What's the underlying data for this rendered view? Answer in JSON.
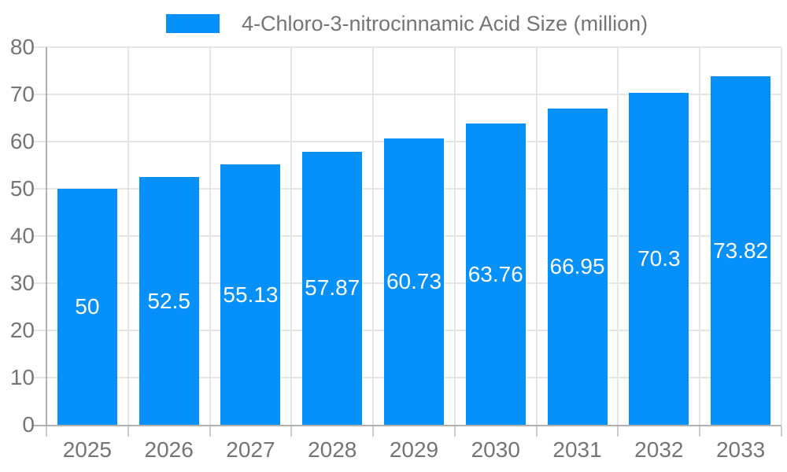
{
  "legend": {
    "label": "4-Chloro-3-nitrocinnamic Acid Size (million)"
  },
  "colors": {
    "bar": "#0690fa",
    "axis": "#b0b0b0",
    "grid": "#e6e6e6",
    "tick": "#cccccc",
    "text": "#757575",
    "bar_label": "#ffffff",
    "background": "#ffffff"
  },
  "chart_data": {
    "type": "bar",
    "title": "4-Chloro-3-nitrocinnamic Acid Size (million)",
    "categories": [
      "2025",
      "2026",
      "2027",
      "2028",
      "2029",
      "2030",
      "2031",
      "2032",
      "2033"
    ],
    "values": [
      50,
      52.5,
      55.13,
      57.87,
      60.73,
      63.76,
      66.95,
      70.3,
      73.82
    ],
    "value_labels": [
      "50",
      "52.5",
      "55.13",
      "57.87",
      "60.73",
      "63.76",
      "66.95",
      "70.3",
      "73.82"
    ],
    "xlabel": "",
    "ylabel": "",
    "ylim": [
      0,
      80
    ],
    "yticks": [
      0,
      10,
      20,
      30,
      40,
      50,
      60,
      70,
      80
    ],
    "grid": true,
    "legend_position": "top-center",
    "bar_label_position": "inside-center"
  }
}
